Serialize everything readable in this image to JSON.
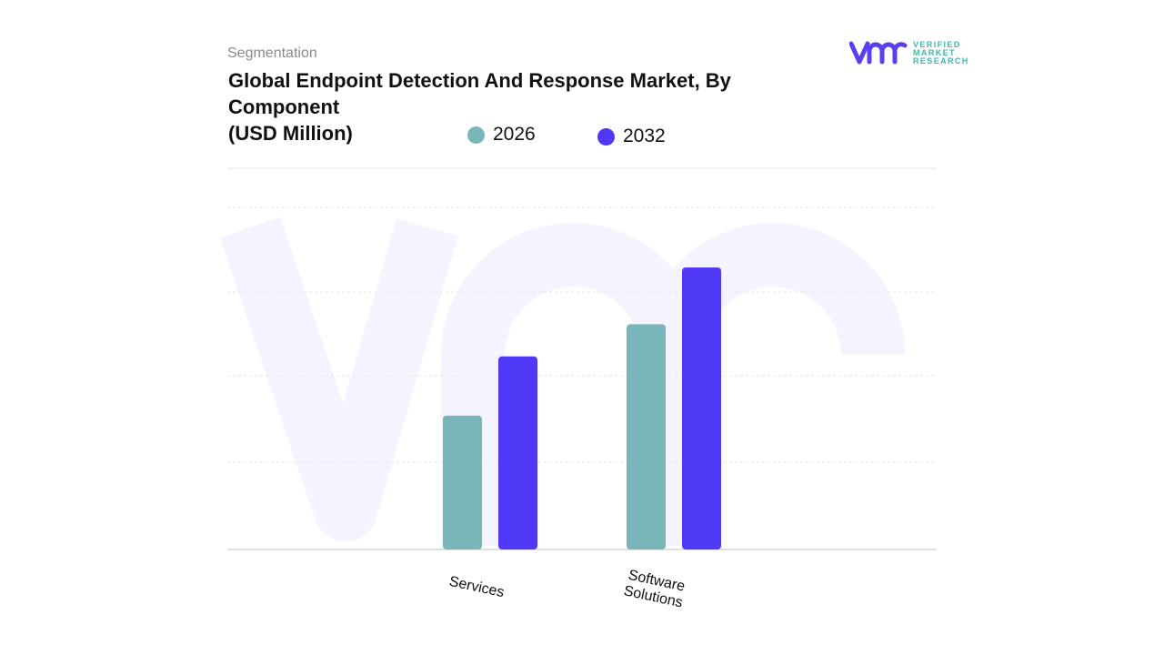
{
  "header": {
    "kicker": "Segmentation",
    "title_line1": "Global Endpoint Detection And Response Market, By Component",
    "title_line2": "(USD Million)"
  },
  "logo": {
    "mark": "vmr",
    "line1": "VERIFIED",
    "line2": "MARKET",
    "line3": "RESEARCH",
    "brand_color": "#5a3ff0",
    "text_color": "#3fb8a8"
  },
  "chart_data": {
    "type": "bar",
    "title": "Global Endpoint Detection And Response Market, By Component (USD Million)",
    "categories": [
      "Services",
      "Software Solutions"
    ],
    "series": [
      {
        "name": "2026",
        "color": "#79b6b9",
        "values": [
          1.58,
          2.66
        ]
      },
      {
        "name": "2032",
        "color": "#4f38f6",
        "values": [
          2.28,
          3.33
        ]
      }
    ],
    "value_units": "relative (no y-axis values printed)",
    "ylim": [
      0,
      4.5
    ],
    "grid": true,
    "y_axis_labels_shown": false,
    "legend_position": "top"
  }
}
